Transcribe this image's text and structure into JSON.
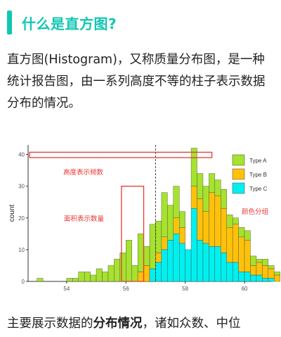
{
  "header": {
    "title": "什么是直方图?"
  },
  "intro": {
    "text": "直方图(Histogram)，又称质量分布图，是一种统计报告图，由一系列高度不等的柱子表示数据分布的情况。"
  },
  "bottom": {
    "text_before": "主要展示数据的",
    "bold": "分布情况",
    "text_after": "，诸如众数、中位"
  },
  "annotations": {
    "height_label": "高度表示频数",
    "area_label": "面积表示数量",
    "color_label": "颜色分组"
  },
  "colors": {
    "type_a": "#a6e22e",
    "type_b": "#ffc20a",
    "type_c": "#00f0f0",
    "annotation": "#e53935",
    "accent": "#10c7b2"
  },
  "chart_data": {
    "type": "bar",
    "stacked": true,
    "ylabel": "count",
    "xlabel": "",
    "x_ticks": [
      54,
      56,
      58,
      60
    ],
    "y_ticks": [
      0,
      10,
      20,
      30,
      40
    ],
    "xlim": [
      52.7,
      60.9
    ],
    "ylim": [
      0,
      43
    ],
    "bin_width": 0.2,
    "x_start": 53.0,
    "mean_line_x": 57.0,
    "legend": {
      "placement": "right",
      "entries": [
        "Type A",
        "Type B",
        "Type C"
      ]
    },
    "series": [
      {
        "name": "Type A",
        "color": "#a6e22e",
        "values": [
          1,
          0,
          0,
          0,
          0,
          1,
          1,
          3,
          3,
          2,
          4,
          3,
          5,
          7,
          9,
          13,
          5,
          12,
          6,
          14,
          10,
          14,
          11,
          10,
          5,
          0,
          12,
          8,
          8,
          6,
          5,
          6,
          4,
          2,
          3,
          3,
          3,
          1,
          2,
          1,
          1,
          0,
          0
        ]
      },
      {
        "name": "Type B",
        "color": "#ffc20a",
        "values": [
          0,
          0,
          0,
          0,
          0,
          0,
          0,
          0,
          0,
          0,
          0,
          0,
          0,
          0,
          0,
          0,
          0,
          3,
          5,
          0,
          3,
          4,
          0,
          5,
          5,
          0,
          7,
          13,
          10,
          17,
          16,
          14,
          11,
          12,
          11,
          10,
          3,
          4,
          4,
          3,
          2,
          0,
          2
        ]
      },
      {
        "name": "Type C",
        "color": "#00f0f0",
        "values": [
          0,
          0,
          0,
          0,
          0,
          0,
          0,
          0,
          0,
          0,
          0,
          0,
          0,
          0,
          0,
          0,
          0,
          0,
          0,
          4,
          6,
          10,
          13,
          15,
          12,
          10,
          23,
          13,
          12,
          11,
          11,
          9,
          6,
          6,
          3,
          3,
          2,
          2,
          1,
          1,
          0,
          0,
          0
        ]
      }
    ]
  }
}
